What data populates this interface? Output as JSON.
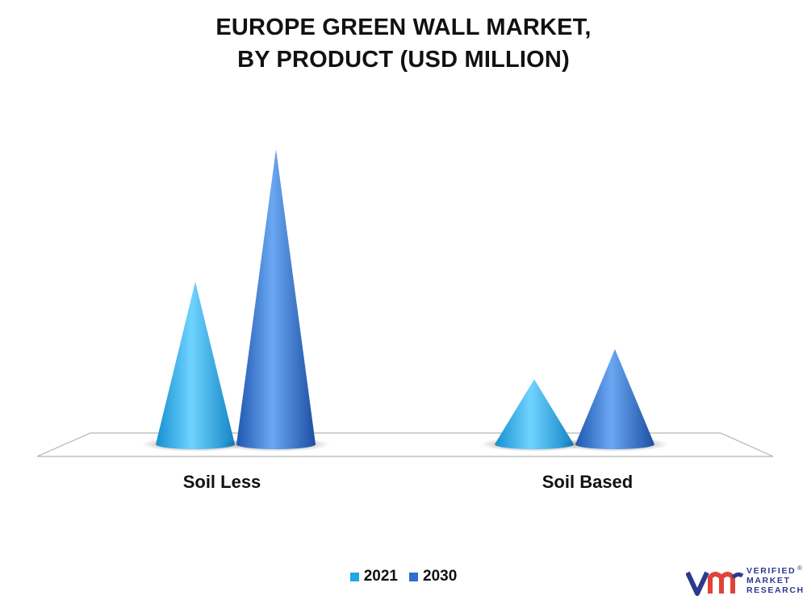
{
  "title_line1": "EUROPE GREEN WALL MARKET,",
  "title_line2": "BY PRODUCT (USD MILLION)",
  "chart_data": {
    "type": "bar",
    "shape": "cone",
    "title": "EUROPE GREEN WALL MARKET, BY PRODUCT (USD MILLION)",
    "categories": [
      "Soil Less",
      "Soil Based"
    ],
    "series": [
      {
        "name": "2021",
        "values": [
          205,
          82
        ],
        "color": "#1fa8e8"
      },
      {
        "name": "2030",
        "values": [
          372,
          120
        ],
        "color": "#2d6fd0"
      }
    ],
    "ylim": [
      0,
      380
    ],
    "grid": false,
    "legend_position": "bottom"
  },
  "logo": {
    "mark": "vm",
    "line1": "VERIFIED",
    "line2": "MARKET",
    "line3": "RESEARCH",
    "reg": "®"
  }
}
